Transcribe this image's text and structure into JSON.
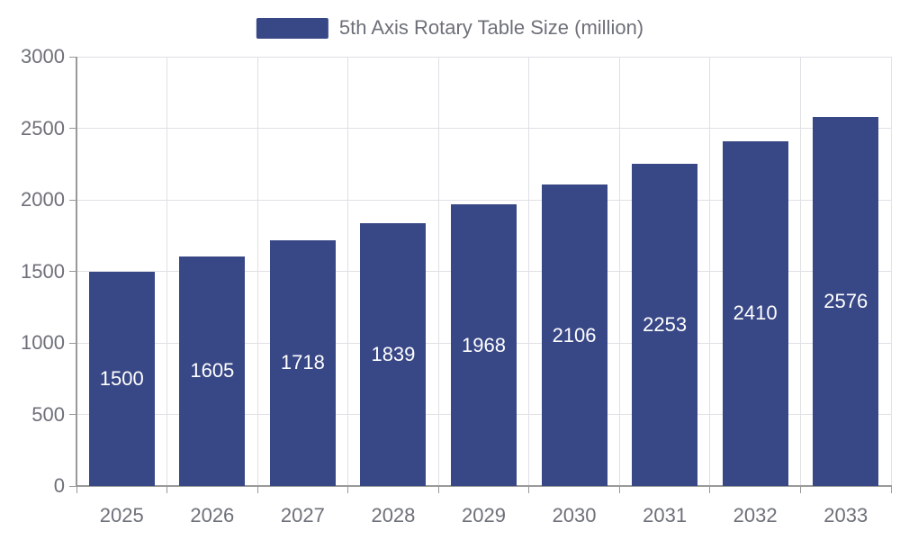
{
  "legend": {
    "label": "5th Axis Rotary Table Size (million)"
  },
  "chart_data": {
    "type": "bar",
    "title": "",
    "xlabel": "",
    "ylabel": "",
    "categories": [
      "2025",
      "2026",
      "2027",
      "2028",
      "2029",
      "2030",
      "2031",
      "2032",
      "2033"
    ],
    "values": [
      1500,
      1605,
      1718,
      1839,
      1968,
      2106,
      2253,
      2410,
      2576
    ],
    "series_name": "5th Axis Rotary Table Size (million)",
    "ylim": [
      0,
      3000
    ],
    "yticks": [
      0,
      500,
      1000,
      1500,
      2000,
      2500,
      3000
    ],
    "grid": true,
    "legend_position": "top-center",
    "data_label_position": "inside-center",
    "colors": {
      "bar": "#384785",
      "bar_value_text": "#ffffff",
      "axis_text": "#6E7079",
      "grid_line": "#E0E0E6",
      "axis_line": "#999999",
      "background": "#ffffff"
    }
  }
}
